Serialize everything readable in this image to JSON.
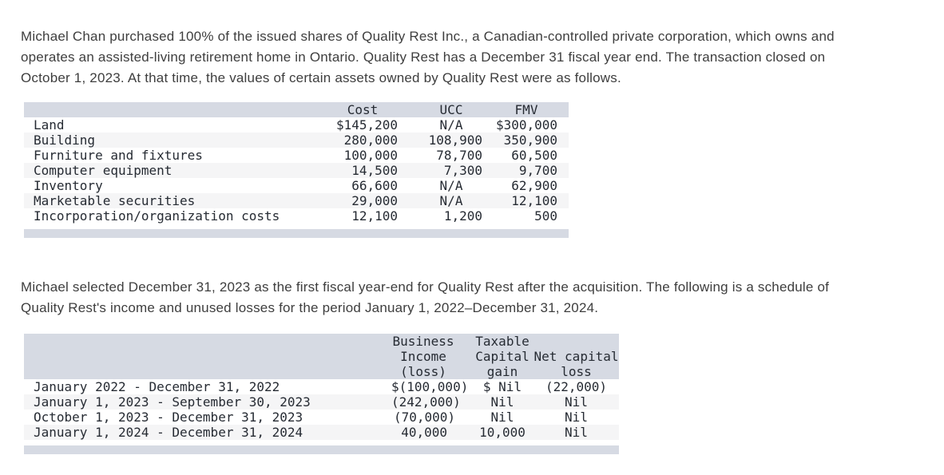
{
  "intro_paragraph": {
    "lines": [
      "Michael Chan purchased 100% of the issued shares of Quality Rest Inc., a Canadian-controlled private corporation, which owns and",
      "operates an assisted-living retirement home in Ontario. Quality Rest has a December 31 fiscal year end. The transaction closed on",
      "October 1, 2023. At that time, the values of certain assets owned by Quality Rest were as follows."
    ]
  },
  "middle_paragraph": {
    "lines": [
      "Michael selected December 31, 2023 as the first fiscal year-end for Quality Rest after the acquisition. The following is a schedule of",
      "Quality Rest's income and unused losses for the period January 1, 2022–December 31, 2024."
    ]
  },
  "asset_table": {
    "header_rows": [
      [
        "",
        "Cost",
        "UCC",
        "FMV"
      ]
    ],
    "rows": [
      [
        "Land",
        "$145,200",
        "N/A",
        "$300,000"
      ],
      [
        "Building",
        "280,000",
        "108,900",
        "350,900"
      ],
      [
        "Furniture and fixtures",
        "100,000",
        "78,700",
        "60,500"
      ],
      [
        "Computer equipment",
        "14,500",
        "7,300",
        "9,700"
      ],
      [
        "Inventory",
        "66,600",
        "N/A",
        "62,900"
      ],
      [
        "Marketable securities",
        "29,000",
        "N/A",
        "12,100"
      ],
      [
        "Incorporation/organization costs",
        "12,100",
        "1,200",
        "500"
      ]
    ]
  },
  "schedule_table": {
    "header_rows": [
      [
        "",
        "Business",
        "Taxable",
        ""
      ],
      [
        "",
        "Income",
        "Capital",
        "Net capital"
      ],
      [
        "",
        "(loss)",
        "gain",
        "loss"
      ]
    ],
    "rows": [
      [
        "January 2022 - December 31, 2022",
        "$(100,000)",
        "$ Nil",
        "(22,000)"
      ],
      [
        "January 1, 2023 - September 30, 2023",
        "(242,000)",
        "Nil",
        "Nil"
      ],
      [
        "October 1, 2023 - December 31, 2023",
        "(70,000)",
        "Nil",
        "Nil"
      ],
      [
        "January 1, 2024 - December 31, 2024",
        "40,000",
        "10,000",
        "Nil"
      ]
    ]
  },
  "colors": {
    "table_header_bg": "#d6dae3",
    "row_stripe_bg": "#f5f5f6",
    "divider_bar": "#d6dae3",
    "table_text": "#262b33",
    "paragraph_text": "#3e3e3e",
    "page_bg": "#ffffff"
  }
}
